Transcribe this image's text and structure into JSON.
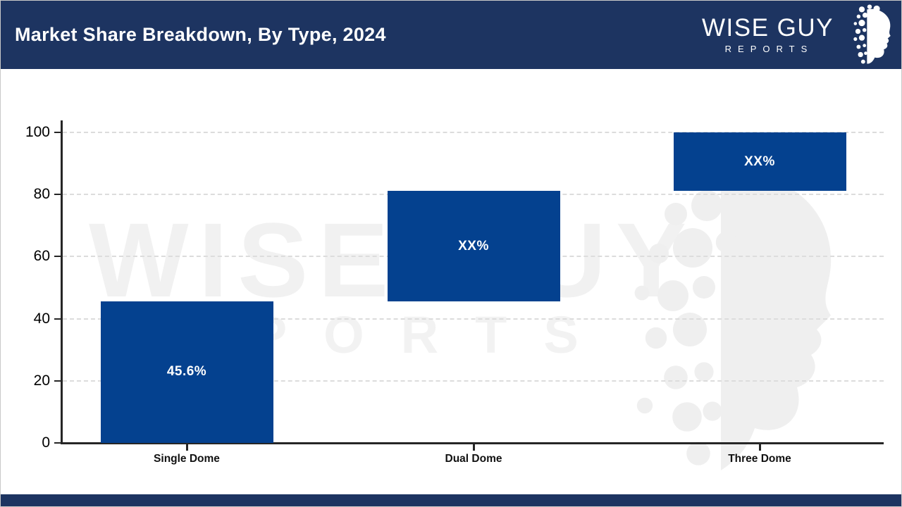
{
  "header": {
    "title": "Market Share Breakdown, By Type, 2024",
    "logo_line1": "WISE GUY",
    "logo_line2": "REPORTS"
  },
  "watermark": {
    "line1": "WISE GUY",
    "line2": "REPORTS"
  },
  "colors": {
    "header_bg": "#1d3461",
    "footer_bg": "#1d3461",
    "bar": "#04418f",
    "grid": "#dcdcdc",
    "axis": "#262626",
    "value_label": "#ffffff"
  },
  "chart_data": {
    "type": "bar",
    "subtype": "waterfall",
    "title": "Market Share Breakdown, By Type, 2024",
    "categories": [
      "Single Dome",
      "Dual Dome",
      "Three Dome"
    ],
    "segments": [
      {
        "category": "Single Dome",
        "label": "45.6%",
        "start": 0,
        "end": 45.6
      },
      {
        "category": "Dual Dome",
        "label": "XX%",
        "start": 45.6,
        "end": 81.1
      },
      {
        "category": "Three Dome",
        "label": "XX%",
        "start": 81.1,
        "end": 100
      }
    ],
    "ylim": [
      0,
      100
    ],
    "yticks": [
      0,
      20,
      40,
      60,
      80,
      100
    ],
    "grid": "horizontal-dashed",
    "legend": "none",
    "bar_color": "#04418f",
    "value_label_color": "#ffffff"
  }
}
